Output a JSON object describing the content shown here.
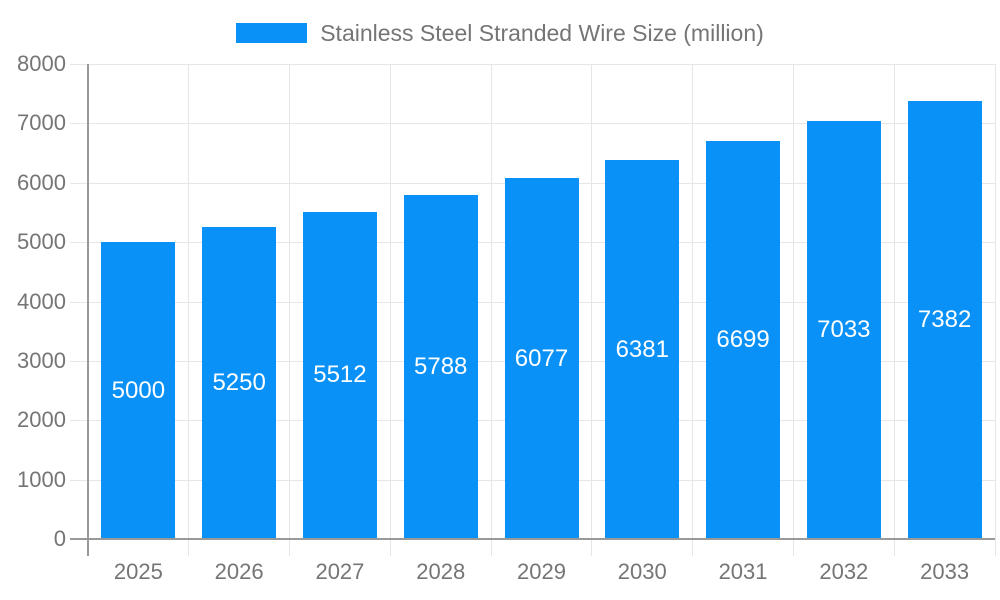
{
  "legend": {
    "label": "Stainless Steel Stranded Wire Size (million)",
    "position": "top"
  },
  "colors": {
    "bar": "#0991f7",
    "bar_label": "#ffffff",
    "axis_text": "#757575",
    "grid": "#e6e6e6",
    "axis_line": "#999999",
    "background": "#ffffff"
  },
  "chart_data": {
    "type": "bar",
    "title": "Stainless Steel Stranded Wire Size (million)",
    "categories": [
      "2025",
      "2026",
      "2027",
      "2028",
      "2029",
      "2030",
      "2031",
      "2032",
      "2033"
    ],
    "values": [
      5000,
      5250,
      5512,
      5788,
      6077,
      6381,
      6699,
      7033,
      7382
    ],
    "xlabel": "",
    "ylabel": "",
    "ylim": [
      0,
      8000
    ],
    "ytick_step": 1000,
    "yticks": [
      0,
      1000,
      2000,
      3000,
      4000,
      5000,
      6000,
      7000,
      8000
    ],
    "grid": true,
    "legend_position": "top",
    "value_labels": "inside-center"
  }
}
